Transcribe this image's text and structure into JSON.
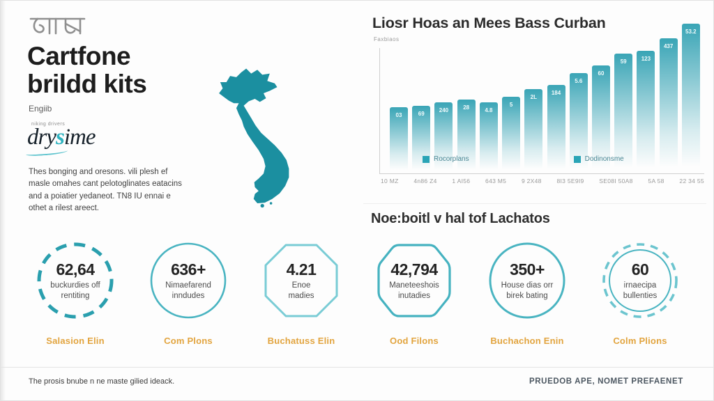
{
  "colors": {
    "accent_teal": "#1b8fa0",
    "bar_teal": "#2fa0b2",
    "orange_label": "#e2a43e",
    "badge_stroke": "#39aebd"
  },
  "header": {
    "logo_icon": "pseudo-bengali-script-logo",
    "title": "Cartfone\nbrildd kits",
    "subtitle": "Engiib",
    "signature_small": "niking drivers",
    "signature": "drysime",
    "paragraph": "Thes bonging and oresons. vili plesh ef\nmasle omahes cant pelotoglinates eatacins\nand a poiatier yedaneot. TN8 IU ennai e\nothet a rilest areect."
  },
  "map": {
    "icon": "vietnam-map",
    "color": "#1b8fa0"
  },
  "chart_data": {
    "type": "bar",
    "title": "Liosr Hoas an Mees Bass Curban",
    "subtitle": "Faxbiaos",
    "bar_labels": [
      "03",
      "69",
      "240",
      "28",
      "4.8",
      "5",
      "2L",
      "184",
      "5.6",
      "60",
      "59",
      "123",
      "437",
      "53.2"
    ],
    "bar_heights_rel": [
      44,
      45,
      47,
      49,
      47,
      51,
      56,
      59,
      67,
      72,
      80,
      82,
      90,
      100
    ],
    "values_note": "heights are relative percentages of tallest bar (gibberish AI-style labels on bars)",
    "x_tick_labels": [
      "10 MZ",
      "4n86 Z4",
      "1 AI56",
      "643 M5",
      "9 2X48",
      "8I3 5E9I9",
      "SE08I 50A8",
      "5A 58",
      "22 34 55"
    ],
    "legend": [
      "Rocorplans",
      "Dodinonsme"
    ],
    "legend_position": "bottom-inside",
    "grid": false,
    "bar_color": "#2fa0b2"
  },
  "section": {
    "heading": "Noe:boitl v hal tof Lachatos"
  },
  "stats": {
    "items": [
      {
        "value": "62,64",
        "caption": "buckurdies off\nrentiting",
        "label": "Salasion Elin",
        "shape": "dashed-circle"
      },
      {
        "value": "636+",
        "caption": "Nimaefarend\ninndudes",
        "label": "Com Plons",
        "shape": "circle"
      },
      {
        "value": "4.21",
        "caption": "Enoe\nmadies",
        "label": "Buchatuss Elin",
        "shape": "octagon"
      },
      {
        "value": "42,794",
        "caption": "Maneteeshois\ninutadies",
        "label": "Ood Filons",
        "shape": "octagon"
      },
      {
        "value": "350+",
        "caption": "House dias orr\nbirek bating",
        "label": "Buchachon Enin",
        "shape": "circle"
      },
      {
        "value": "60",
        "caption": "irnaecipa\nbullenties",
        "label": "Colm Plions",
        "shape": "dashed-circle"
      }
    ]
  },
  "footer": {
    "left": "The prosis bnube n ne maste gilied ideack.",
    "right": "PRUEDOB APE, NOMET PREFAENET"
  }
}
